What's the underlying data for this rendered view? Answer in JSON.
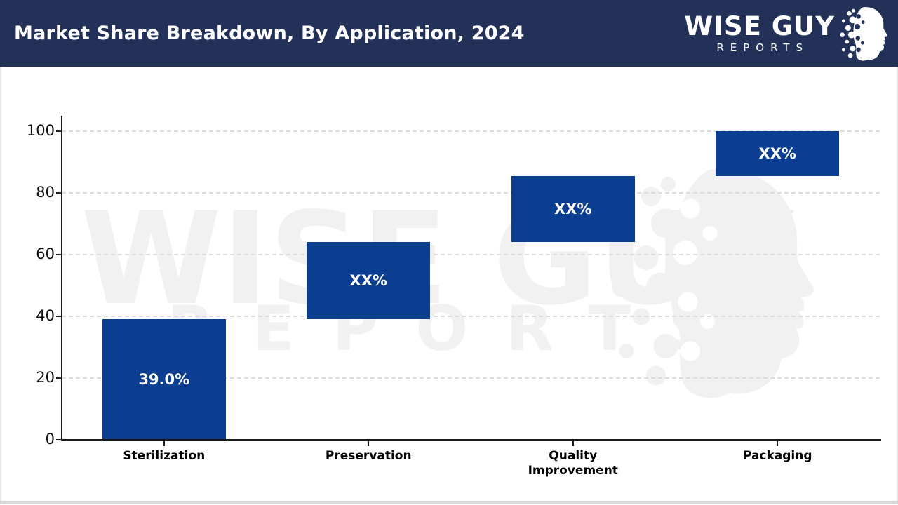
{
  "header": {
    "title": "Market Share Breakdown, By Application, 2024",
    "logo": {
      "name": "WISE GUY",
      "tagline": "REPORTS"
    }
  },
  "watermark": {
    "line1": "WISE GUY",
    "line2": "REPORTS"
  },
  "chart_data": {
    "type": "bar",
    "variant": "waterfall",
    "title": "Market Share Breakdown, By Application, 2024",
    "categories": [
      "Sterilization",
      "Preservation",
      "Quality Improvement",
      "Packaging"
    ],
    "segments": [
      {
        "category": "Sterilization",
        "start": 0,
        "end": 39,
        "label": "39.0%"
      },
      {
        "category": "Preservation",
        "start": 39,
        "end": 64,
        "label": "XX%"
      },
      {
        "category": "Quality Improvement",
        "start": 64,
        "end": 85.5,
        "label": "XX%"
      },
      {
        "category": "Packaging",
        "start": 85.5,
        "end": 100,
        "label": "XX%"
      }
    ],
    "yticks": [
      0,
      20,
      40,
      60,
      80,
      100
    ],
    "ylim": [
      0,
      105
    ],
    "xlabel": "",
    "ylabel": "",
    "grid": "horizontal-dashed",
    "legend": "none",
    "bar_color": "#0b3e90",
    "bar_label_color": "#ffffff"
  },
  "colors": {
    "header_bg": "#233158",
    "accent_blue": "#0b3e90",
    "grid": "#dcdcdc",
    "axis": "#1a1a1a",
    "watermark": "#f1f1f1"
  }
}
